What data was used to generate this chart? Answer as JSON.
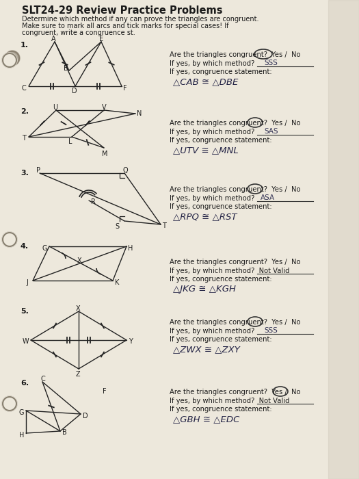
{
  "paper_color": "#ede8dc",
  "title": "SLT24-29 Review Practice Problems",
  "sub1": "Determine which method if any can prove the triangles are congruent.",
  "sub2": "Make sure to mark all arcs and tick marks for special cases! If",
  "sub3": "congruent, write a congruence st.",
  "qx": 248,
  "problems": [
    {
      "num": "1.",
      "qy": 75,
      "congruent_text": "Are the triangles congruent?",
      "yes_circled": true,
      "no_circled": false,
      "method": "SSS",
      "statement": "△CAB ≅ △DBE"
    },
    {
      "num": "2.",
      "qy": 175,
      "congruent_text": "Are the triangles congruent?",
      "yes_circled": true,
      "no_circled": false,
      "method": "SAS",
      "statement": "△UTV ≅ △MNL"
    },
    {
      "num": "3.",
      "qy": 272,
      "congruent_text": "Are the triangles congruent?",
      "yes_circled": true,
      "no_circled": false,
      "method": "ASA",
      "statement": "△RPQ ≅ △RST"
    },
    {
      "num": "4.",
      "qy": 378,
      "congruent_text": "Are the triangles congruent?",
      "yes_circled": false,
      "no_circled": false,
      "method": "Not Valid",
      "statement": "△JKG ≅ △KGH"
    },
    {
      "num": "5.",
      "qy": 466,
      "congruent_text": "Are the triangles congruent?",
      "yes_circled": true,
      "no_circled": false,
      "method": "SSS",
      "statement": "△ZWX ≅ △ZXY"
    },
    {
      "num": "6.",
      "qy": 568,
      "congruent_text": "Are the triangles congruent?",
      "yes_circled": false,
      "no_circled": true,
      "method": "Not Valid",
      "statement": "△GBH ≅ △EDC"
    }
  ]
}
